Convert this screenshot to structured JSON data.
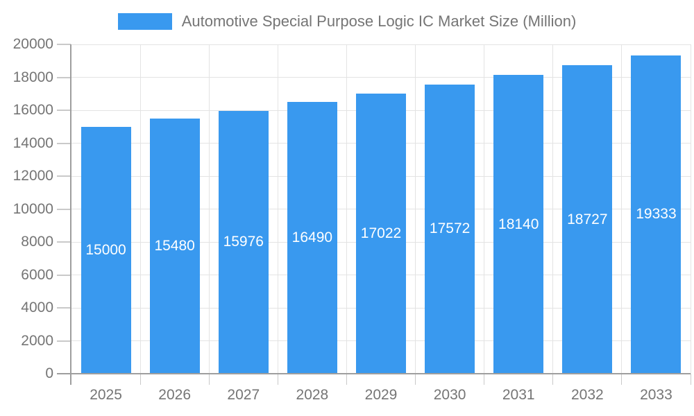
{
  "chart_data": {
    "type": "bar",
    "title": "Automotive Special Purpose Logic IC Market Size (Million)",
    "categories": [
      "2025",
      "2026",
      "2027",
      "2028",
      "2029",
      "2030",
      "2031",
      "2032",
      "2033"
    ],
    "series": [
      {
        "name": "Automotive Special Purpose Logic IC Market Size (Million)",
        "values": [
          15000,
          15480,
          15976,
          16490,
          17022,
          17572,
          18140,
          18727,
          19333
        ]
      }
    ],
    "xlabel": "",
    "ylabel": "",
    "ylim": [
      0,
      20000
    ],
    "ytick_step": 2000,
    "yticks": [
      0,
      2000,
      4000,
      6000,
      8000,
      10000,
      12000,
      14000,
      16000,
      18000,
      20000
    ],
    "grid": true,
    "legend_position": "top-center",
    "value_labels_position": "inside-middle",
    "colors": {
      "bar": "#3999EF",
      "grid": "#E3E3E3",
      "tick": "#C9C9C9",
      "axis": "#9E9E9E",
      "text": "#757575",
      "value_label": "#FFFFFF",
      "background": "#FFFFFF"
    }
  }
}
